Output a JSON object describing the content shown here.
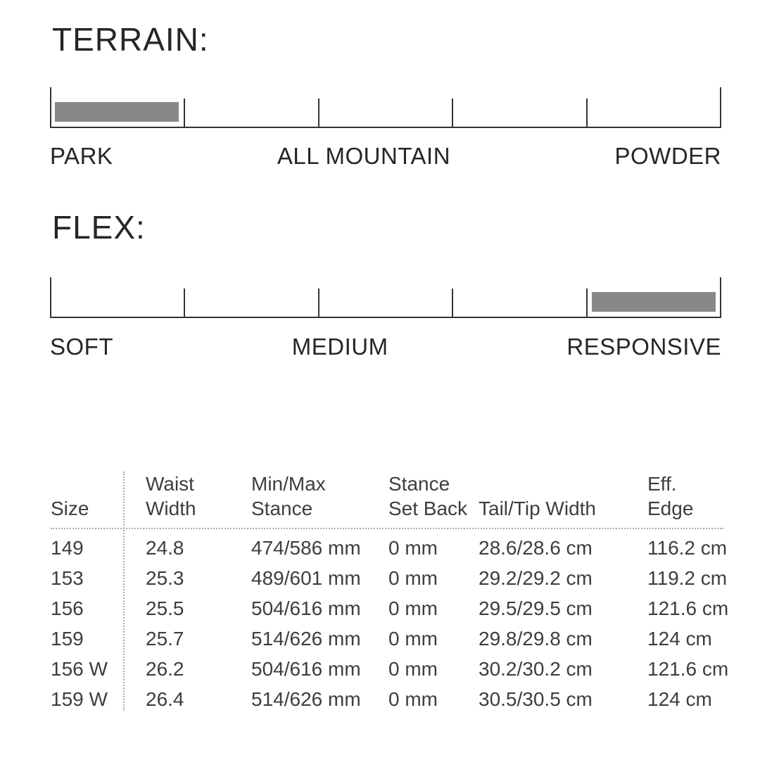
{
  "colors": {
    "background": "#ffffff",
    "gauge_bar": "#888888",
    "scale_line": "#343434",
    "title_text": "#262626",
    "table_text": "#3e3e3e",
    "dotted_line": "#ababab"
  },
  "terrain": {
    "title": "TERRAIN:",
    "labels": {
      "left": "PARK",
      "center": "ALL MOUNTAIN",
      "right": "POWDER"
    },
    "segments": 5,
    "filled_segment": 1
  },
  "flex": {
    "title": "FLEX:",
    "labels": {
      "left": "SOFT",
      "center": "MEDIUM",
      "right": "RESPONSIVE"
    },
    "segments": 5,
    "filled_segment": 5
  },
  "table": {
    "headers": {
      "size": "Size",
      "waist_width": "Waist\nWidth",
      "min_max_stance": "Min/Max\nStance",
      "stance_set_back": "Stance\nSet Back",
      "tail_tip_width": "Tail/Tip Width",
      "eff_edge": "Eff. Edge"
    },
    "rows": [
      {
        "size": "149",
        "waist_width": "24.8",
        "min_max_stance": "474/586 mm",
        "stance_set_back": "0 mm",
        "tail_tip_width": "28.6/28.6 cm",
        "eff_edge": "116.2 cm"
      },
      {
        "size": "153",
        "waist_width": "25.3",
        "min_max_stance": "489/601 mm",
        "stance_set_back": "0 mm",
        "tail_tip_width": "29.2/29.2 cm",
        "eff_edge": "119.2 cm"
      },
      {
        "size": "156",
        "waist_width": "25.5",
        "min_max_stance": "504/616 mm",
        "stance_set_back": "0 mm",
        "tail_tip_width": "29.5/29.5 cm",
        "eff_edge": "121.6 cm"
      },
      {
        "size": "159",
        "waist_width": "25.7",
        "min_max_stance": "514/626 mm",
        "stance_set_back": "0 mm",
        "tail_tip_width": "29.8/29.8 cm",
        "eff_edge": "124 cm"
      },
      {
        "size": "156 W",
        "waist_width": "26.2",
        "min_max_stance": "504/616 mm",
        "stance_set_back": "0 mm",
        "tail_tip_width": "30.2/30.2 cm",
        "eff_edge": "121.6 cm"
      },
      {
        "size": "159 W",
        "waist_width": "26.4",
        "min_max_stance": "514/626 mm",
        "stance_set_back": "0 mm",
        "tail_tip_width": "30.5/30.5 cm",
        "eff_edge": "124 cm"
      }
    ]
  },
  "chart_data": [
    {
      "type": "bar",
      "title": "TERRAIN:",
      "categories": [
        "PARK",
        "ALL MOUNTAIN",
        "POWDER"
      ],
      "segments_total": 5,
      "filled_segment_index": 1,
      "value_range_fraction": [
        0.0,
        0.2
      ],
      "reading": "PARK",
      "legend_position": "below",
      "grid": false
    },
    {
      "type": "bar",
      "title": "FLEX:",
      "categories": [
        "SOFT",
        "MEDIUM",
        "RESPONSIVE"
      ],
      "segments_total": 5,
      "filled_segment_index": 5,
      "value_range_fraction": [
        0.8,
        1.0
      ],
      "reading": "RESPONSIVE",
      "legend_position": "below",
      "grid": false
    },
    {
      "type": "table",
      "columns": [
        "Size",
        "Waist Width",
        "Min/Max Stance",
        "Stance Set Back",
        "Tail/Tip Width",
        "Eff. Edge"
      ],
      "rows": [
        [
          "149",
          "24.8",
          "474/586 mm",
          "0 mm",
          "28.6/28.6 cm",
          "116.2 cm"
        ],
        [
          "153",
          "25.3",
          "489/601 mm",
          "0 mm",
          "29.2/29.2 cm",
          "119.2 cm"
        ],
        [
          "156",
          "25.5",
          "504/616 mm",
          "0 mm",
          "29.5/29.5 cm",
          "121.6 cm"
        ],
        [
          "159",
          "25.7",
          "514/626 mm",
          "0 mm",
          "29.8/29.8 cm",
          "124 cm"
        ],
        [
          "156 W",
          "26.2",
          "504/616 mm",
          "0 mm",
          "30.2/30.2 cm",
          "121.6 cm"
        ],
        [
          "159 W",
          "26.4",
          "514/626 mm",
          "0 mm",
          "30.5/30.5 cm",
          "124 cm"
        ]
      ]
    }
  ]
}
